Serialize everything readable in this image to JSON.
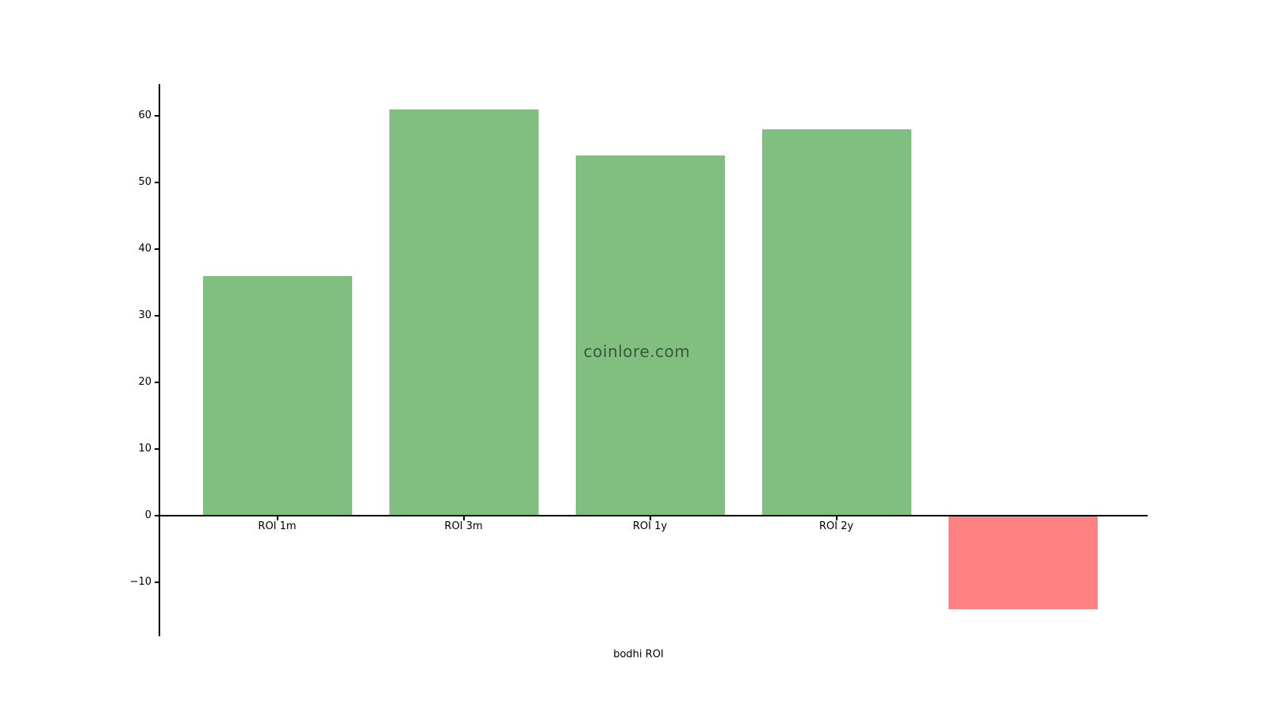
{
  "chart_data": {
    "type": "bar",
    "title": "bodhi ROI",
    "watermark": "coinlore.com",
    "categories": [
      "ROI 1m",
      "ROI 3m",
      "ROI 1y",
      "ROI 2y",
      ""
    ],
    "values": [
      36,
      61,
      54,
      58,
      -14
    ],
    "series": [
      {
        "name": "bodhi ROI %",
        "values": [
          36,
          61,
          54,
          58,
          -14
        ]
      }
    ],
    "ytick_values": [
      -10,
      0,
      10,
      20,
      30,
      40,
      50,
      60
    ],
    "ytick_labels": [
      "−10",
      "0",
      "10",
      "20",
      "30",
      "40",
      "50",
      "60"
    ],
    "ylim": [
      -17.75,
      64.75
    ],
    "xlabel": "",
    "ylabel": "",
    "grid": "off",
    "legend": "none",
    "colors": {
      "positive_bar": "#80bf80",
      "negative_bar": "#ff8080",
      "axis": "#000000",
      "tick_text": "#000000",
      "watermark_text": "#3a4f3e"
    }
  }
}
